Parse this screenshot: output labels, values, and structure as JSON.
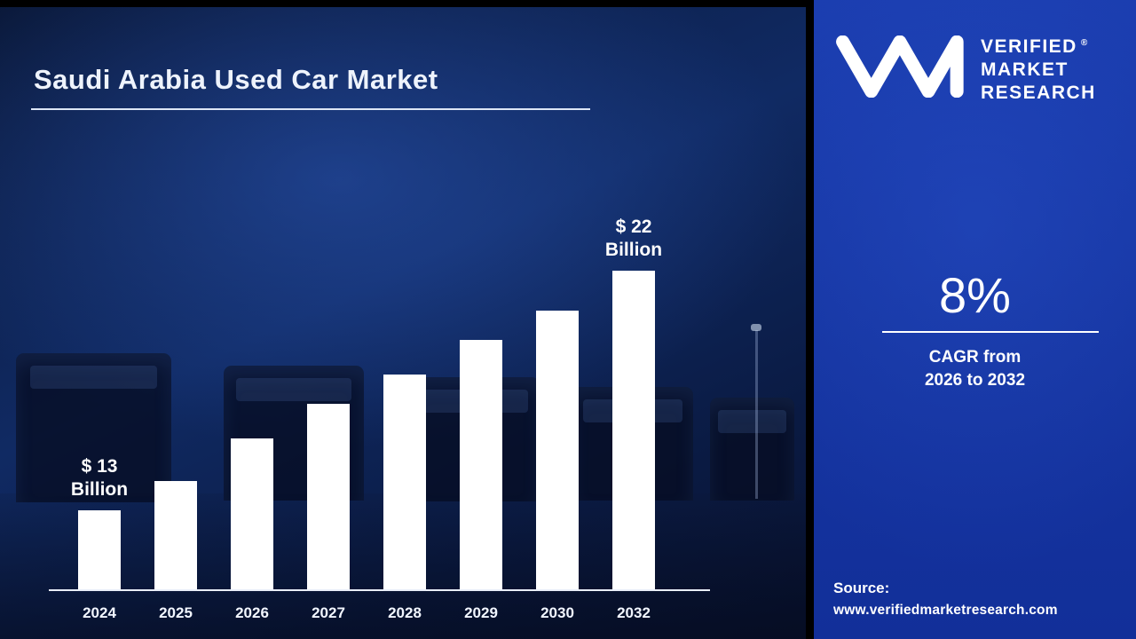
{
  "chart_data": {
    "type": "bar",
    "title": "Saudi Arabia Used Car Market",
    "categories": [
      "2024",
      "2025",
      "2026",
      "2027",
      "2028",
      "2029",
      "2030",
      "2032"
    ],
    "values": [
      13,
      14.1,
      15.7,
      17,
      18.1,
      19.4,
      20.5,
      22
    ],
    "unit": "USD Billion",
    "labeled_points": [
      {
        "category": "2024",
        "label_value": "$ 13",
        "label_unit": "Billion"
      },
      {
        "category": "2032",
        "label_value": "$ 22",
        "label_unit": "Billion"
      }
    ],
    "xlabel": "",
    "ylabel": "",
    "ylim": [
      10,
      22
    ],
    "grid": false,
    "legend": false,
    "bar_color": "#ffffff",
    "axis_color": "#e9eef9"
  },
  "brand": {
    "logo_icon": "vmr-monogram",
    "name_lines": [
      "VERIFIED",
      "MARKET",
      "RESEARCH"
    ],
    "registered_mark": "®"
  },
  "stats": {
    "cagr_value": "8%",
    "cagr_caption_line1": "CAGR from",
    "cagr_caption_line2": "2026 to 2032"
  },
  "source": {
    "label": "Source:",
    "url": "www.verifiedmarketresearch.com"
  },
  "colors": {
    "panel_blue": "#1737a3",
    "background_navy": "#0c1d49",
    "bar_white": "#ffffff",
    "text_white": "#ffffff",
    "divider_black": "#000000"
  }
}
